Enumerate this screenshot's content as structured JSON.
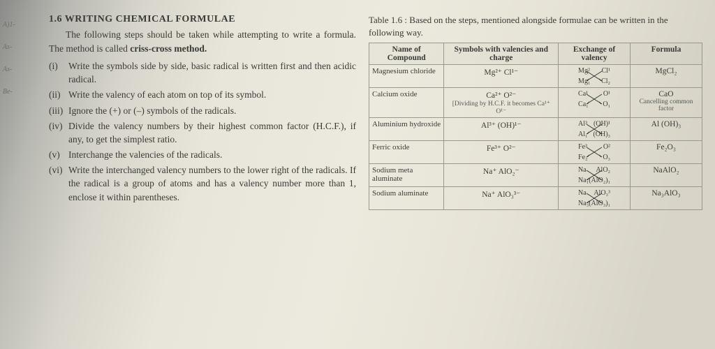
{
  "margin": [
    "A)1-",
    "As-",
    "As-",
    "Be-"
  ],
  "heading": "1.6  WRITING CHEMICAL FORMULAE",
  "intro1": "The following steps should be taken while attempting to write a formula. The method is called ",
  "intro_bold": "criss-cross method.",
  "steps": [
    {
      "n": "(i)",
      "t": "Write the symbols side by side, basic radical is written first and then acidic radical."
    },
    {
      "n": "(ii)",
      "t": "Write the valency of each atom on top of its symbol."
    },
    {
      "n": "(iii)",
      "t": "Ignore the (+) or (–) symbols of the radicals."
    },
    {
      "n": "(iv)",
      "t": "Divide the valency numbers by their highest common factor (H.C.F.), if any, to get the simplest ratio."
    },
    {
      "n": "(v)",
      "t": "Interchange the valencies of the radicals."
    },
    {
      "n": "(vi)",
      "t": "Write the interchanged valency numbers to the lower right of the radicals. If the radical is a group of atoms and has a valency number more than 1, enclose it within parentheses."
    }
  ],
  "table_caption": "Table 1.6 : Based on the steps, mentioned alongside formulae can be written in the following way.",
  "columns": [
    "Name of Compound",
    "Symbols with valencies and charge",
    "Exchange of valency",
    "Formula"
  ],
  "rows": [
    {
      "name": "Magnesium chloride",
      "sym": "Mg²⁺   Cl¹⁻",
      "ex_tl": "Mg²",
      "ex_tr": "Cl¹",
      "ex_bl": "Mg₁",
      "ex_br": "Cl₂",
      "formula": "MgCl₂",
      "note": ""
    },
    {
      "name": "Calcium oxide",
      "sym": "Ca²⁺   O²⁻",
      "sym2": "[Dividing by H.C.F. it becomes Ca¹⁺ O¹⁻",
      "ex_tl": "Ca¹",
      "ex_tr": "O¹",
      "ex_bl": "Ca₁",
      "ex_br": "O₁",
      "formula": "CaO",
      "note": "Cancelling common factor"
    },
    {
      "name": "Aluminium hydroxide",
      "sym": "Al³⁺   (OH)¹⁻",
      "ex_tl": "Al³",
      "ex_tr": "(OH)¹",
      "ex_bl": "Al₁",
      "ex_br": "(OH)₃",
      "formula": "Al (OH)₃",
      "note": ""
    },
    {
      "name": "Ferric oxide",
      "sym": "Fe³⁺   O²⁻",
      "ex_tl": "Fe³",
      "ex_tr": "O²",
      "ex_bl": "Fe₂",
      "ex_br": "O₃",
      "formula": "Fe₂O₃",
      "note": ""
    },
    {
      "name": "Sodium meta aluminate",
      "sym": "Na⁺   AlO₂⁻",
      "ex_tl": "Na",
      "ex_tr": "AlO₂",
      "ex_bl": "Na₁",
      "ex_br": "(AlO₂)₁",
      "formula": "NaAlO₂",
      "note": ""
    },
    {
      "name": "Sodium aluminate",
      "sym": "Na⁺   AlO₃³⁻",
      "ex_tl": "Na",
      "ex_tr": "AlO₃³",
      "ex_bl": "Na₃",
      "ex_br": "(AlO₃)₁",
      "formula": "Na₃AlO₃",
      "note": ""
    }
  ]
}
